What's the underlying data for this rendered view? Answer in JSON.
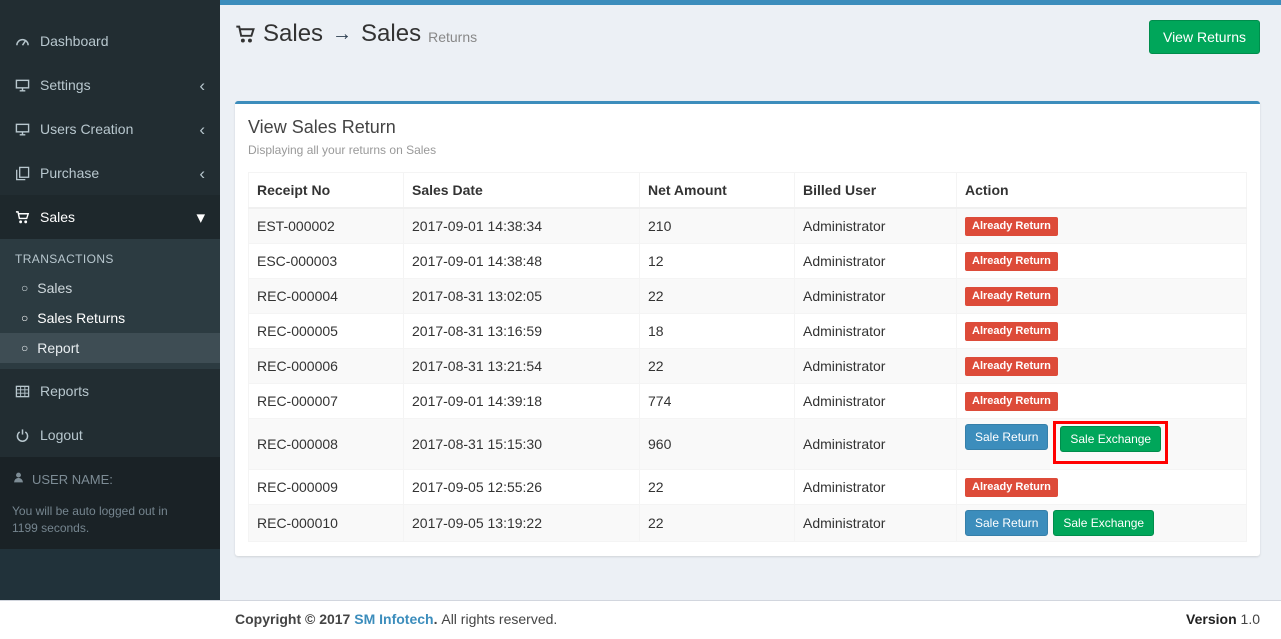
{
  "colors": {
    "primary": "#3c8dbc",
    "success": "#00a65a",
    "danger": "#dd4b39",
    "sidebar-bg": "#222d32",
    "sidebar-active-bg": "#1e282c",
    "submenu-bg": "#2c3b41",
    "content-bg": "#ecf0f5",
    "highlight-red": "#ff0000"
  },
  "icons": {
    "chevron_left": "‹",
    "chevron_down": "▾",
    "circle": "○"
  },
  "sidebar": {
    "items": [
      {
        "label": "Dashboard"
      },
      {
        "label": "Settings"
      },
      {
        "label": "Users Creation"
      },
      {
        "label": "Purchase"
      },
      {
        "label": "Sales"
      }
    ],
    "submenu_header": "TRANSACTIONS",
    "submenu_items": [
      {
        "label": "Sales"
      },
      {
        "label": "Sales Returns"
      },
      {
        "label": "Report"
      }
    ],
    "bottom_items": [
      {
        "label": "Reports"
      },
      {
        "label": "Logout"
      }
    ],
    "user_label": "USER NAME:",
    "auto_logout_notice": "You will be auto logged out in 1199 seconds."
  },
  "header": {
    "title_main": "Sales",
    "title_arrow": "→",
    "title_section": "Sales",
    "title_sub": "Returns",
    "action_button": "View Returns"
  },
  "panel": {
    "title": "View Sales Return",
    "subtitle": "Displaying all your returns on Sales"
  },
  "labels": {
    "already": "Already Return",
    "return": "Sale Return",
    "exchange": "Sale Exchange"
  },
  "table": {
    "columns": [
      "Receipt No",
      "Sales Date",
      "Net Amount",
      "Billed User",
      "Action"
    ],
    "rows": [
      {
        "receipt": "EST-000002",
        "date": "2017-09-01 14:38:34",
        "amount": 210,
        "user": "Administrator",
        "actions": [
          "already"
        ]
      },
      {
        "receipt": "ESC-000003",
        "date": "2017-09-01 14:38:48",
        "amount": 12,
        "user": "Administrator",
        "actions": [
          "already"
        ]
      },
      {
        "receipt": "REC-000004",
        "date": "2017-08-31 13:02:05",
        "amount": 22,
        "user": "Administrator",
        "actions": [
          "already"
        ]
      },
      {
        "receipt": "REC-000005",
        "date": "2017-08-31 13:16:59",
        "amount": 18,
        "user": "Administrator",
        "actions": [
          "already"
        ]
      },
      {
        "receipt": "REC-000006",
        "date": "2017-08-31 13:21:54",
        "amount": 22,
        "user": "Administrator",
        "actions": [
          "already"
        ]
      },
      {
        "receipt": "REC-000007",
        "date": "2017-09-01 14:39:18",
        "amount": 774,
        "user": "Administrator",
        "actions": [
          "already"
        ]
      },
      {
        "receipt": "REC-000008",
        "date": "2017-08-31 15:15:30",
        "amount": 960,
        "user": "Administrator",
        "actions": [
          "return",
          "exchange"
        ],
        "highlight": true
      },
      {
        "receipt": "REC-000009",
        "date": "2017-09-05 12:55:26",
        "amount": 22,
        "user": "Administrator",
        "actions": [
          "already"
        ]
      },
      {
        "receipt": "REC-000010",
        "date": "2017-09-05 13:19:22",
        "amount": 22,
        "user": "Administrator",
        "actions": [
          "return",
          "exchange"
        ]
      }
    ]
  },
  "footer": {
    "copyright": "Copyright © 2017",
    "company": "SM Infotech",
    "suffix": ".",
    "rights": "All rights reserved.",
    "version_label": "Version",
    "version_value": "1.0"
  }
}
